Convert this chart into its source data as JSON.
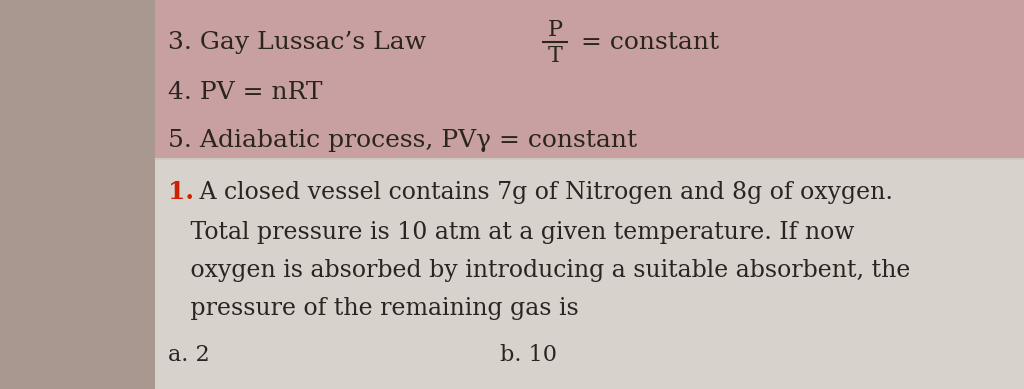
{
  "upper_left_bg": "#b8a8a0",
  "upper_right_bg": "#c8a8a8",
  "lower_bg": "#d8d0c8",
  "highlight_color": "#c8a0a0",
  "text_color": "#2a2520",
  "question_color": "#cc2200",
  "line3_prefix": "3. Gay Lussac’s Law ",
  "line3_num": "P",
  "line3_den": "T",
  "line3_suffix": " = constant",
  "line4": "4. PV = nRT",
  "line5": "5. Adiabatic process, PVγ = constant",
  "q_number": "1.",
  "q_line1": " A closed vessel contains 7g of Nitrogen and 8g of oxygen.",
  "q_line2": "   Total pressure is 10 atm at a given temperature. If now",
  "q_line3": "   oxygen is absorbed by introducing a suitable absorbent, the",
  "q_line4": "   pressure of the remaining gas is",
  "option_a": "a. 2",
  "option_b": "b. 10",
  "fs_upper": 18,
  "fs_lower": 17,
  "fs_options": 16
}
